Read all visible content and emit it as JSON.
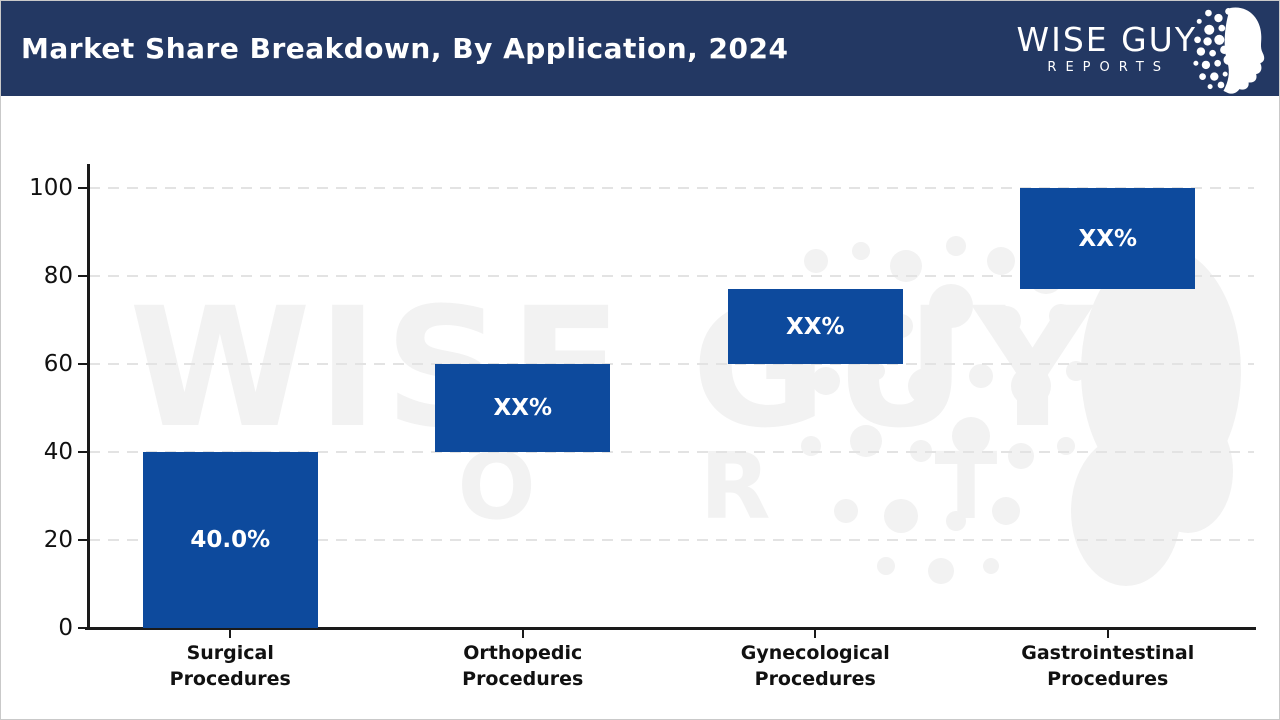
{
  "page": {
    "background": "#ffffff",
    "border_color": "#c9c9c9"
  },
  "header": {
    "background": "#233863",
    "title": "Market Share Breakdown, By Application, 2024",
    "logo": {
      "wordmark": "WISE GUY",
      "sub": "REPORTS",
      "head_icon": "dotted-head-profile"
    }
  },
  "watermark": {
    "line1": "WISE GUY",
    "line2": "P O R T S"
  },
  "chart_data": {
    "type": "bar",
    "subtype": "waterfall",
    "title": "Market Share Breakdown, By Application, 2024",
    "xlabel": "",
    "ylabel": "",
    "ylim": [
      0,
      105
    ],
    "y_ticks": [
      0,
      20,
      40,
      60,
      80,
      100
    ],
    "grid": "horizontal-dashed",
    "legend": null,
    "bar_color": "#0D4A9D",
    "value_label_color": "#ffffff",
    "categories": [
      "Surgical Procedures",
      "Orthopedic Procedures",
      "Gynecological Procedures",
      "Gastrointestinal Procedures"
    ],
    "bars": [
      {
        "category_lines": [
          "Surgical",
          "Procedures"
        ],
        "start": 0,
        "end": 40,
        "value": 40,
        "label": "40.0%"
      },
      {
        "category_lines": [
          "Orthopedic",
          "Procedures"
        ],
        "start": 40,
        "end": 60,
        "value": 20,
        "label": "XX%"
      },
      {
        "category_lines": [
          "Gynecological",
          "Procedures"
        ],
        "start": 60,
        "end": 77,
        "value": 17,
        "label": "XX%"
      },
      {
        "category_lines": [
          "Gastrointestinal",
          "Procedures"
        ],
        "start": 77,
        "end": 100,
        "value": 23,
        "label": "XX%"
      }
    ]
  }
}
